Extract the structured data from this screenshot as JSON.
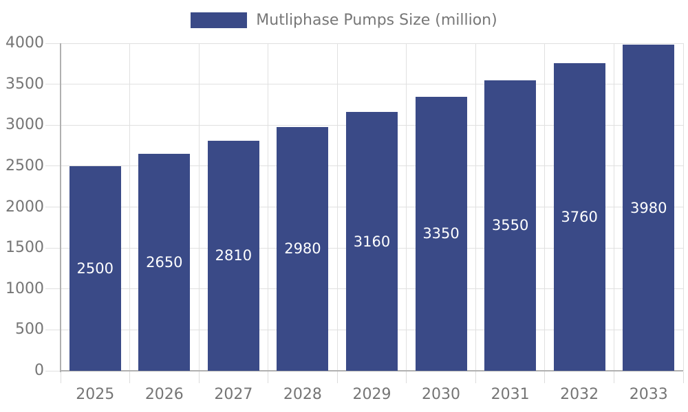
{
  "legend": {
    "label": "Mutliphase Pumps Size (million)",
    "swatch_color": "#3a4a87"
  },
  "chart_data": {
    "type": "bar",
    "title": "Mutliphase Pumps Size (million)",
    "categories": [
      "2025",
      "2026",
      "2027",
      "2028",
      "2029",
      "2030",
      "2031",
      "2032",
      "2033"
    ],
    "series": [
      {
        "name": "Mutliphase Pumps Size (million)",
        "values": [
          2500,
          2650,
          2810,
          2980,
          3160,
          3350,
          3550,
          3760,
          3980
        ],
        "color": "#3a4a87"
      }
    ],
    "xlabel": "",
    "ylabel": "",
    "ylim": [
      0,
      4000
    ],
    "yticks": [
      0,
      500,
      1000,
      1500,
      2000,
      2500,
      3000,
      3500,
      4000
    ],
    "grid": true,
    "legend_position": "top-center",
    "value_labels_position": "inside-center",
    "value_label_color": "#ffffff",
    "axis_label_color": "#757575",
    "gridline_color": "#e0e0e0",
    "tick_color": "#dcdcdc",
    "axis_line_color": "#b0b0b0",
    "background_color": "#ffffff"
  }
}
